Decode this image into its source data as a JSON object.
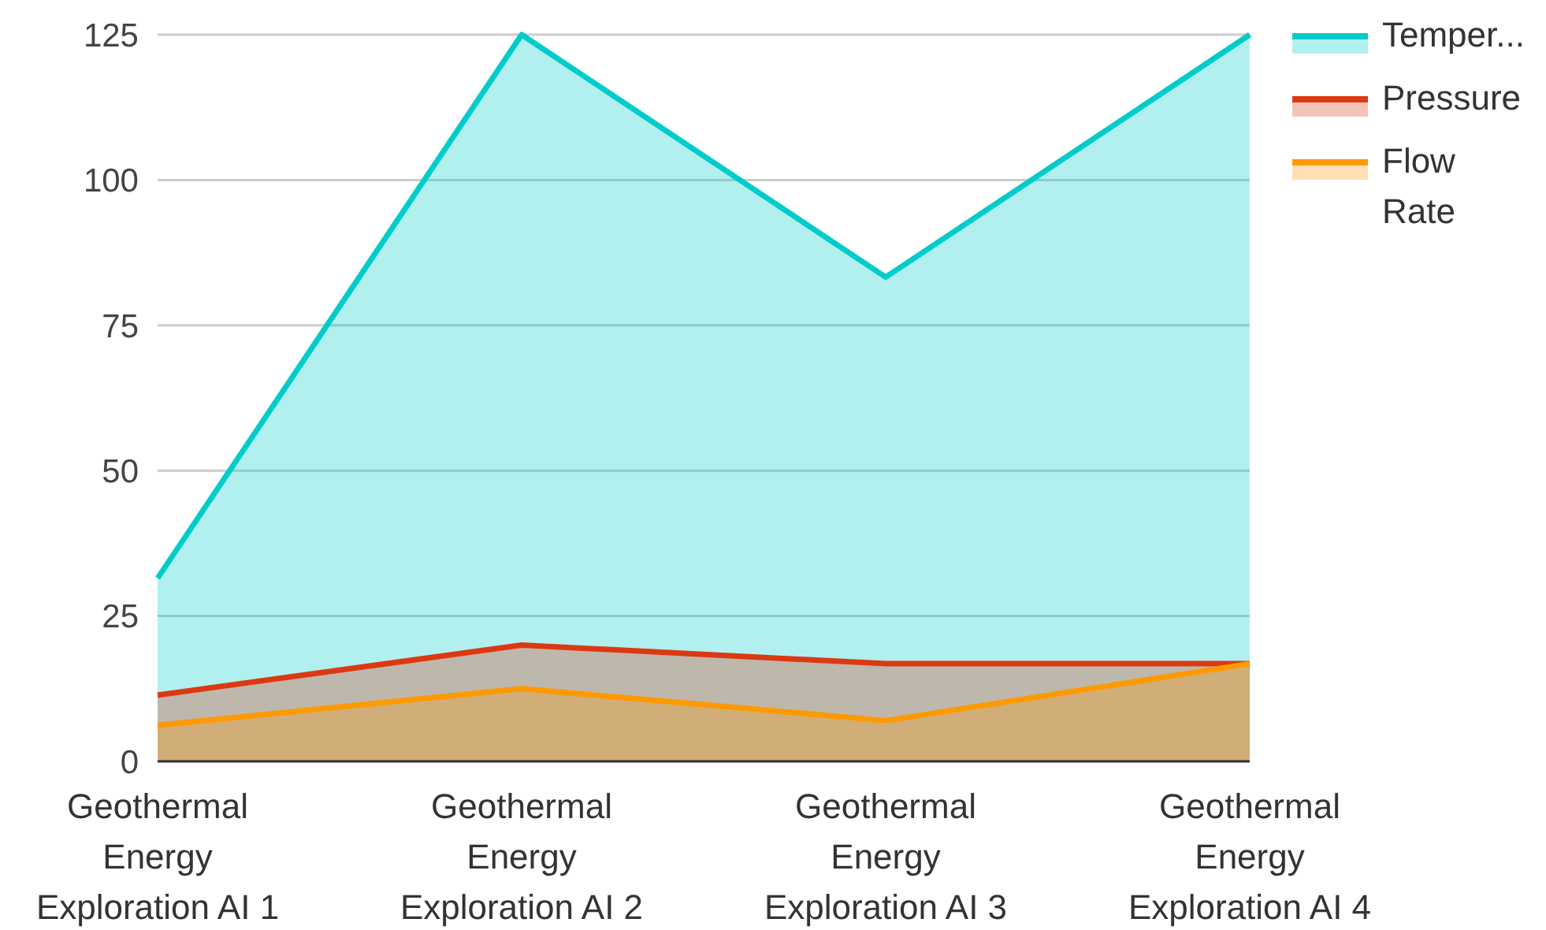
{
  "chart_data": {
    "type": "area",
    "categories": [
      "Geothermal Energy Exploration AI 1",
      "Geothermal Energy Exploration AI 2",
      "Geothermal Energy Exploration AI 3",
      "Geothermal Energy Exploration AI 4"
    ],
    "series": [
      {
        "name": "Temper...",
        "color": "#00cccc",
        "values": [
          31.5,
          125,
          83.3,
          125
        ]
      },
      {
        "name": "Pressure",
        "color": "#dc3912",
        "values": [
          11.4,
          20,
          16.8,
          16.8
        ]
      },
      {
        "name": "Flow Rate",
        "color": "#ff9900",
        "values": [
          6.2,
          12.5,
          7,
          16.8
        ]
      }
    ],
    "ylim": [
      0,
      125
    ],
    "yticks": [
      0,
      25,
      50,
      75,
      100,
      125
    ],
    "grid": "y",
    "legend": "right"
  }
}
